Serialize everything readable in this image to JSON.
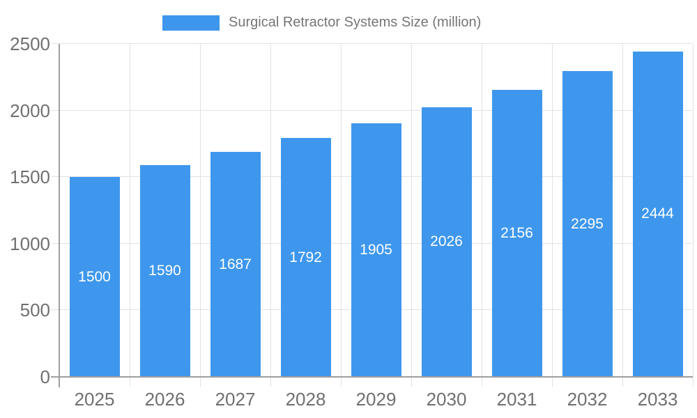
{
  "legend": {
    "position": "top-center"
  },
  "chart_data": {
    "type": "bar",
    "title": "Surgical Retractor Systems Size (million)",
    "categories": [
      "2025",
      "2026",
      "2027",
      "2028",
      "2029",
      "2030",
      "2031",
      "2032",
      "2033"
    ],
    "values": [
      1500,
      1590,
      1687,
      1792,
      1905,
      2026,
      2156,
      2295,
      2444
    ],
    "xlabel": "",
    "ylabel": "",
    "ylim": [
      0,
      2500
    ],
    "yticks": [
      0,
      500,
      1000,
      1500,
      2000,
      2500
    ],
    "grid": true,
    "legend_position": "top",
    "bar_color": "#3E97ED",
    "value_label_color": "#FFFFFF",
    "axis_text_color": "#707070",
    "gridline_color": "#E2E2E2",
    "axis_line_color": "#9E9E9E"
  }
}
